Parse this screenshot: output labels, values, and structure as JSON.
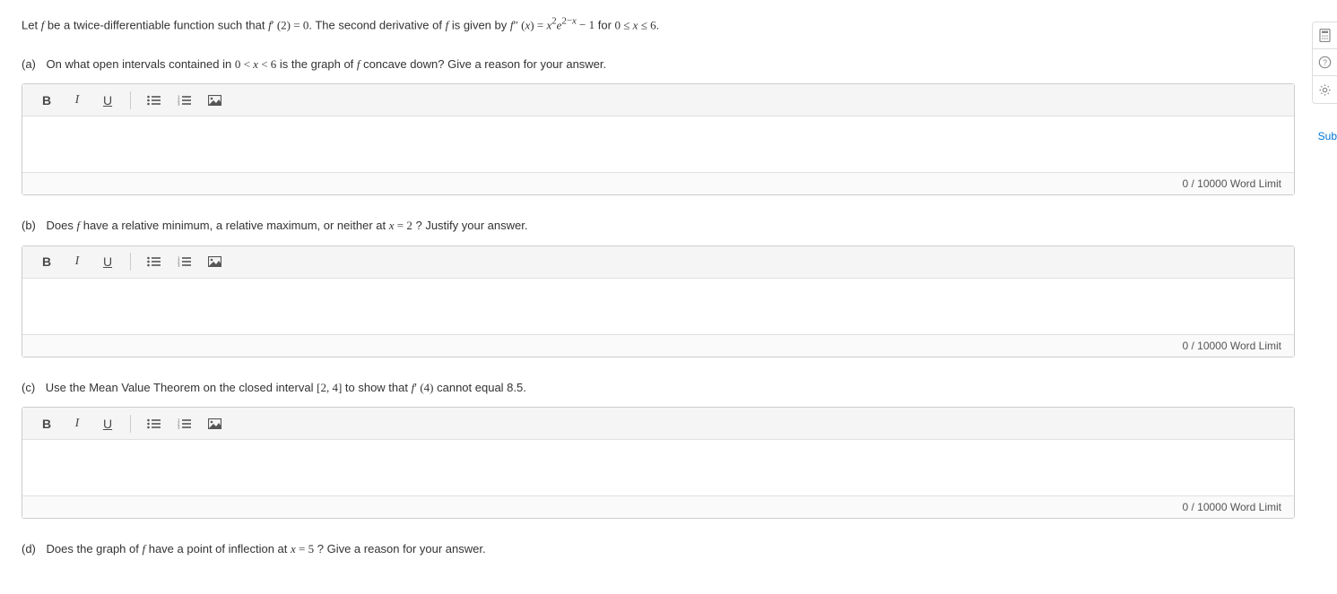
{
  "intro_html": "Let <span class='math-italic'>f</span> be a twice-differentiable function such that <span class='math-italic'>f</span><span class='math-reg'>′ (2) = 0</span>. The second derivative of <span class='math-italic'>f</span> is given by <span class='math-italic'>f</span><span class='math-reg'>″ (</span><span class='math-italic'>x</span><span class='math-reg'>) = </span><span class='math-italic'>x</span><span class='math-reg'><sup>2</sup></span><span class='math-italic'>e</span><span class='math-reg'><sup>2−<span class='math-italic'>x</span></sup> − 1</span> for <span class='math-reg'>0 ≤ </span><span class='math-italic'>x</span><span class='math-reg'> ≤ 6</span>.",
  "questions": [
    {
      "label": "(a)",
      "text_html": "On what open intervals contained in <span class='math-reg'>0 &lt; </span><span class='math-italic'>x</span><span class='math-reg'> &lt; 6</span> is the graph of <span class='math-italic'>f</span> concave down? Give a reason for your answer.",
      "word_count": "0",
      "word_limit": "10000"
    },
    {
      "label": "(b)",
      "text_html": "Does <span class='math-italic'>f</span> have a relative minimum, a relative maximum, or neither at <span class='math-italic'>x</span><span class='math-reg'> = 2</span> ? Justify your answer.",
      "word_count": "0",
      "word_limit": "10000"
    },
    {
      "label": "(c)",
      "text_html": "Use the Mean Value Theorem on the closed interval <span class='math-reg'>[2, 4]</span> to show that <span class='math-italic'>f</span><span class='math-reg'>′ (4)</span> cannot equal 8.5.",
      "word_count": "0",
      "word_limit": "10000"
    },
    {
      "label": "(d)",
      "text_html": "Does the graph of <span class='math-italic'>f</span> have a point of inflection at <span class='math-italic'>x</span><span class='math-reg'> = 5</span> ? Give a reason for your answer.",
      "word_count": null,
      "word_limit": null
    }
  ],
  "toolbar": {
    "bold": "B",
    "italic": "I",
    "underline": "U"
  },
  "word_limit_template": "Word Limit",
  "submit_label": "Sub",
  "colors": {
    "text": "#333333",
    "border": "#cccccc",
    "toolbar_bg": "#f5f5f5",
    "link": "#0074d9"
  }
}
